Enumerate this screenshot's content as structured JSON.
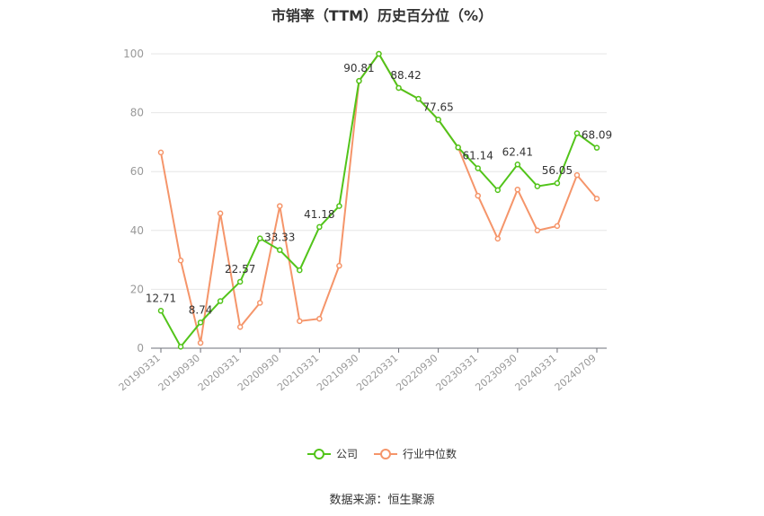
{
  "title": "市销率（TTM）历史百分位（%）",
  "source": "数据来源：恒生聚源",
  "colors": {
    "company": "#52c41a",
    "industry": "#f5956a",
    "grid": "#e6e6e6",
    "axis": "#999999",
    "label": "#333333"
  },
  "legend": {
    "company_label": "公司",
    "industry_label": "行业中位数"
  },
  "chart_data": {
    "type": "line",
    "title": "市销率（TTM）历史百分位（%）",
    "xlabel": "",
    "ylabel": "",
    "ylim": [
      0,
      100
    ],
    "yticks": [
      0,
      20,
      40,
      60,
      80,
      100
    ],
    "grid": true,
    "legend_position": "bottom",
    "x": [
      "20190331",
      "20190630",
      "20190930",
      "20191231",
      "20200331",
      "20200630",
      "20200930",
      "20201231",
      "20210331",
      "20210630",
      "20210930",
      "20211231",
      "20220331",
      "20220630",
      "20220930",
      "20221231",
      "20230331",
      "20230630",
      "20230930",
      "20231231",
      "20240331",
      "20240630",
      "20240709"
    ],
    "xtick_labels": [
      "20190331",
      "20190930",
      "20200331",
      "20200930",
      "20210331",
      "20210930",
      "20220331",
      "20220930",
      "20230331",
      "20230930",
      "20240331",
      "20240709"
    ],
    "series": [
      {
        "name": "公司",
        "values": [
          12.71,
          0.5,
          8.74,
          16.0,
          22.57,
          37.3,
          33.33,
          26.5,
          41.18,
          48.3,
          90.81,
          100.0,
          88.42,
          84.7,
          77.65,
          68.2,
          61.14,
          53.7,
          62.41,
          55.0,
          56.05,
          73.0,
          68.09
        ],
        "labeled_points": {
          "0": "12.71",
          "2": "8.74",
          "4": "22.57",
          "6": "33.33",
          "8": "41.18",
          "10": "90.81",
          "12": "88.42",
          "14": "77.65",
          "16": "61.14",
          "18": "62.41",
          "20": "56.05",
          "22": "68.09"
        }
      },
      {
        "name": "行业中位数",
        "values": [
          66.5,
          29.8,
          1.8,
          45.8,
          7.2,
          15.4,
          48.3,
          9.2,
          10.0,
          28.0,
          90.81,
          100.0,
          88.42,
          84.7,
          77.6,
          68.2,
          51.8,
          37.2,
          53.9,
          40.0,
          41.5,
          58.8,
          50.8
        ]
      }
    ]
  }
}
